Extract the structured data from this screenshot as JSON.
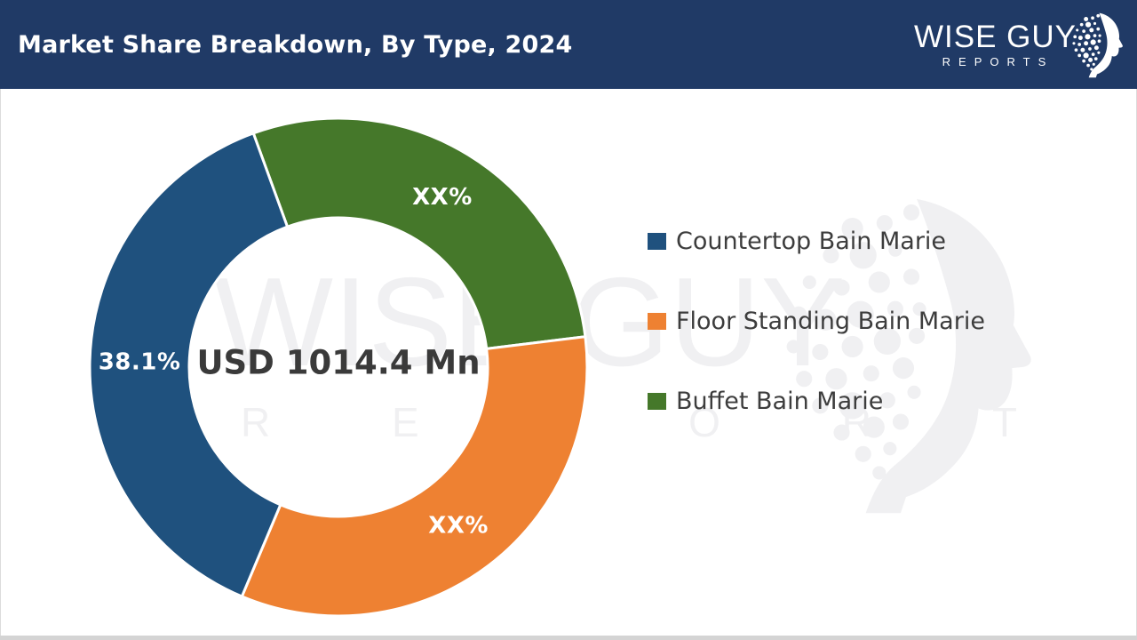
{
  "header": {
    "title": "Market Share Breakdown, By Type, 2024",
    "logo": {
      "line1": "WISE GUY",
      "line2": "REPORTS"
    }
  },
  "watermark": {
    "line1": "WISE GUY",
    "line2": "R E P O R T S"
  },
  "chart_data": {
    "type": "donut",
    "title": "Market Share Breakdown, By Type, 2024",
    "center_label": "USD 1014.4 Mn",
    "donut_hole_ratio": 0.6,
    "start_angle_deg_cw_from_top": -20,
    "legend_position": "right",
    "segments": [
      {
        "name": "Buffet Bain Marie",
        "label": "XX%",
        "share_pct": 28.6,
        "share_shown": false,
        "color": "#45782A"
      },
      {
        "name": "Floor Standing Bain Marie",
        "label": "XX%",
        "share_pct": 33.3,
        "share_shown": false,
        "color": "#EE8132"
      },
      {
        "name": "Countertop Bain Marie",
        "label": "38.1%",
        "share_pct": 38.1,
        "share_shown": true,
        "color": "#1F517E"
      }
    ]
  },
  "legend": {
    "items": [
      {
        "label": "Countertop Bain Marie",
        "color": "#1F517E"
      },
      {
        "label": "Floor Standing Bain Marie",
        "color": "#EE8132"
      },
      {
        "label": "Buffet Bain Marie",
        "color": "#45782A"
      }
    ]
  },
  "colors": {
    "header_bg": "#203A66",
    "watermark": "#F0F0F2",
    "footer_bar": "#D4D4D4",
    "center_text": "#3A3A3A"
  }
}
